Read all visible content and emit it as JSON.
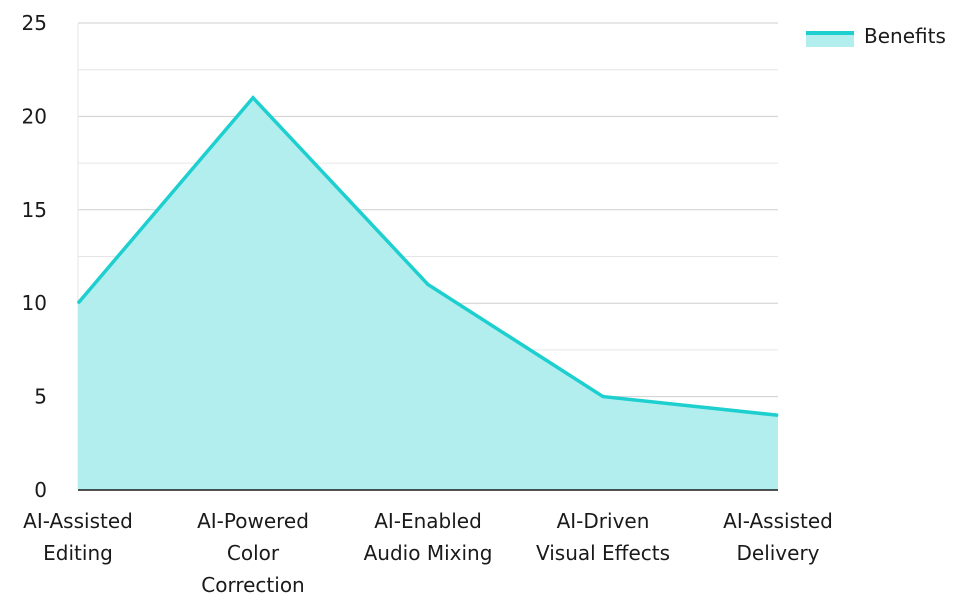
{
  "chart_data": {
    "type": "area",
    "title": "",
    "xlabel": "",
    "ylabel": "",
    "categories": [
      [
        "AI-Assisted",
        "Editing"
      ],
      [
        "AI-Powered",
        "Color",
        "Correction"
      ],
      [
        "AI-Enabled",
        "Audio Mixing"
      ],
      [
        "AI-Driven",
        "Visual Effects"
      ],
      [
        "AI-Assisted",
        "Delivery"
      ]
    ],
    "series": [
      {
        "name": "Benefits",
        "values": [
          10,
          21,
          11,
          5,
          4
        ],
        "line_color": "#1ecfcf",
        "fill_color": "#b2eeee"
      }
    ],
    "ylim": [
      0,
      25
    ],
    "yticks": [
      0,
      5,
      10,
      15,
      20,
      25
    ],
    "ytick_labels": [
      "0",
      "5",
      "10",
      "15",
      "20",
      "25"
    ],
    "grid": true,
    "grid_color": "#cfcfcf",
    "minor_grid_color": "#e6e6e6",
    "legend_position": "top-right"
  }
}
